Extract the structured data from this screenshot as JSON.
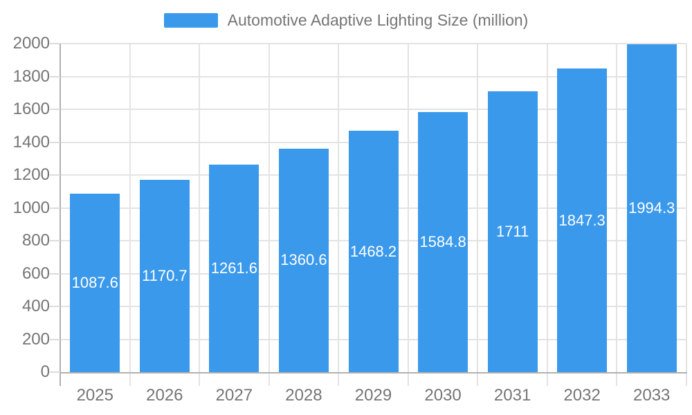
{
  "legend": {
    "label": "Automotive Adaptive Lighting Size (million)"
  },
  "chart_data": {
    "type": "bar",
    "title": "Automotive Adaptive Lighting Size (million)",
    "categories": [
      "2025",
      "2026",
      "2027",
      "2028",
      "2029",
      "2030",
      "2031",
      "2032",
      "2033"
    ],
    "values": [
      1087.6,
      1170.7,
      1261.6,
      1360.6,
      1468.2,
      1584.8,
      1711,
      1847.3,
      1994.3
    ],
    "bar_labels": [
      "1087.6",
      "1170.7",
      "1261.6",
      "1360.6",
      "1468.2",
      "1584.8",
      "1711",
      "1847.3",
      "1994.3"
    ],
    "xlabel": "",
    "ylabel": "",
    "ylim": [
      0,
      2000
    ],
    "ytick_step": 200,
    "ytick_labels": [
      "0",
      "200",
      "400",
      "600",
      "800",
      "1000",
      "1200",
      "1400",
      "1600",
      "1800",
      "2000"
    ],
    "grid": true,
    "legend_position": "top"
  },
  "colors": {
    "bar": "#3B99EC",
    "axis": "#b0b0b0",
    "grid": "#e3e3e3",
    "tick": "#dcdcdc",
    "text": "#757575",
    "bar_label": "#ffffff",
    "background": "#ffffff"
  }
}
